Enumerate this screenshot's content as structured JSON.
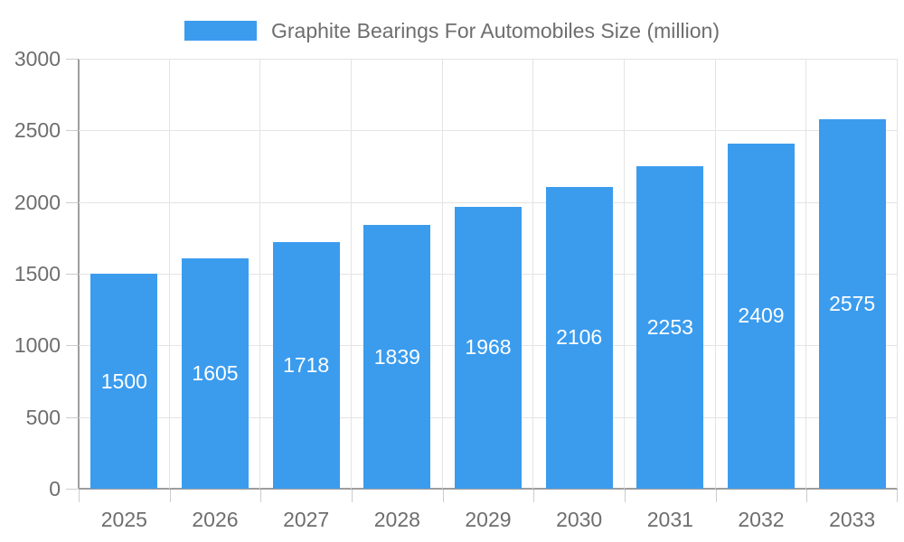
{
  "legend": {
    "label": "Graphite Bearings For Automobiles Size (million)",
    "swatch_color": "#3b9cee"
  },
  "chart_data": {
    "type": "bar",
    "title": "Graphite Bearings For Automobiles Size (million)",
    "categories": [
      "2025",
      "2026",
      "2027",
      "2028",
      "2029",
      "2030",
      "2031",
      "2032",
      "2033"
    ],
    "values": [
      1500,
      1605,
      1718,
      1839,
      1968,
      2106,
      2253,
      2409,
      2575
    ],
    "series": [
      {
        "name": "Graphite Bearings For Automobiles Size (million)",
        "values": [
          1500,
          1605,
          1718,
          1839,
          1968,
          2106,
          2253,
          2409,
          2575
        ]
      }
    ],
    "xlabel": "",
    "ylabel": "",
    "ylim": [
      0,
      3000
    ],
    "yticks": [
      0,
      500,
      1000,
      1500,
      2000,
      2500,
      3000
    ],
    "grid": true,
    "legend_position": "top",
    "bar_color": "#3b9cee",
    "bar_label_color": "#ffffff",
    "axis_text_color": "#6e6e6e",
    "gridline_color": "#e4e4e4",
    "axis_line_color": "#9e9e9e",
    "background_color": "#ffffff"
  }
}
